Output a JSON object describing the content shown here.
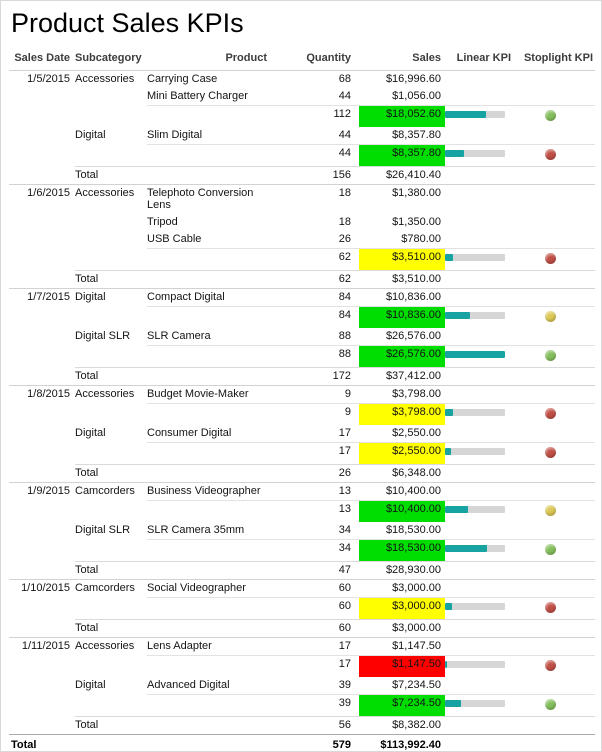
{
  "title": "Product Sales KPIs",
  "colors": {
    "green": "#00dd00",
    "yellow": "#ffff00",
    "red": "#ff0000",
    "bar_fill": "#16a3a1",
    "bar_track": "#d6d6d6",
    "dot_green": "#84bf5c",
    "dot_yellow": "#dcc855",
    "dot_red": "#c05046"
  },
  "chart_data": {
    "type": "table",
    "title": "Product Sales KPIs",
    "columns": [
      "Sales Date",
      "Subcategory",
      "Product",
      "Quantity",
      "Sales",
      "Linear KPI",
      "Stoplight KPI"
    ],
    "rows": [
      {
        "type": "detail",
        "group_start": true,
        "date": "1/5/2015",
        "subcategory": "Accessories",
        "product": "Carrying Case",
        "quantity": "68",
        "sales": "$16,996.60"
      },
      {
        "type": "detail",
        "product": "Mini Battery Charger",
        "quantity": "44",
        "sales": "$1,056.00"
      },
      {
        "type": "subtotal",
        "quantity": "112",
        "sales": "$18,052.60",
        "sales_bg": "green",
        "bar_pct": 68,
        "dot": "green"
      },
      {
        "type": "detail",
        "subcategory": "Digital",
        "product": "Slim Digital",
        "quantity": "44",
        "sales": "$8,357.80"
      },
      {
        "type": "subtotal",
        "quantity": "44",
        "sales": "$8,357.80",
        "sales_bg": "green",
        "bar_pct": 31,
        "dot": "red"
      },
      {
        "type": "total",
        "subcategory": "Total",
        "quantity": "156",
        "sales": "$26,410.40"
      },
      {
        "type": "detail",
        "group_start": true,
        "date": "1/6/2015",
        "subcategory": "Accessories",
        "product": "Telephoto Conversion Lens",
        "quantity": "18",
        "sales": "$1,380.00"
      },
      {
        "type": "detail",
        "product": "Tripod",
        "quantity": "18",
        "sales": "$1,350.00"
      },
      {
        "type": "detail",
        "product": "USB Cable",
        "quantity": "26",
        "sales": "$780.00"
      },
      {
        "type": "subtotal",
        "quantity": "62",
        "sales": "$3,510.00",
        "sales_bg": "yellow",
        "bar_pct": 13,
        "dot": "red"
      },
      {
        "type": "total",
        "subcategory": "Total",
        "quantity": "62",
        "sales": "$3,510.00"
      },
      {
        "type": "detail",
        "group_start": true,
        "date": "1/7/2015",
        "subcategory": "Digital",
        "product": "Compact Digital",
        "quantity": "84",
        "sales": "$10,836.00"
      },
      {
        "type": "subtotal",
        "quantity": "84",
        "sales": "$10,836.00",
        "sales_bg": "green",
        "bar_pct": 41,
        "dot": "yellow"
      },
      {
        "type": "detail",
        "subcategory": "Digital SLR",
        "product": "SLR Camera",
        "quantity": "88",
        "sales": "$26,576.00"
      },
      {
        "type": "subtotal",
        "quantity": "88",
        "sales": "$26,576.00",
        "sales_bg": "green",
        "bar_pct": 100,
        "dot": "green"
      },
      {
        "type": "total",
        "subcategory": "Total",
        "quantity": "172",
        "sales": "$37,412.00"
      },
      {
        "type": "detail",
        "group_start": true,
        "date": "1/8/2015",
        "subcategory": "Accessories",
        "product": "Budget Movie-Maker",
        "quantity": "9",
        "sales": "$3,798.00"
      },
      {
        "type": "subtotal",
        "quantity": "9",
        "sales": "$3,798.00",
        "sales_bg": "yellow",
        "bar_pct": 14,
        "dot": "red"
      },
      {
        "type": "detail",
        "subcategory": "Digital",
        "product": "Consumer Digital",
        "quantity": "17",
        "sales": "$2,550.00"
      },
      {
        "type": "subtotal",
        "quantity": "17",
        "sales": "$2,550.00",
        "sales_bg": "yellow",
        "bar_pct": 10,
        "dot": "red"
      },
      {
        "type": "total",
        "subcategory": "Total",
        "quantity": "26",
        "sales": "$6,348.00"
      },
      {
        "type": "detail",
        "group_start": true,
        "date": "1/9/2015",
        "subcategory": "Camcorders",
        "product": "Business Videographer",
        "quantity": "13",
        "sales": "$10,400.00"
      },
      {
        "type": "subtotal",
        "quantity": "13",
        "sales": "$10,400.00",
        "sales_bg": "green",
        "bar_pct": 39,
        "dot": "yellow"
      },
      {
        "type": "detail",
        "subcategory": "Digital SLR",
        "product": "SLR Camera 35mm",
        "quantity": "34",
        "sales": "$18,530.00"
      },
      {
        "type": "subtotal",
        "quantity": "34",
        "sales": "$18,530.00",
        "sales_bg": "green",
        "bar_pct": 70,
        "dot": "green"
      },
      {
        "type": "total",
        "subcategory": "Total",
        "quantity": "47",
        "sales": "$28,930.00"
      },
      {
        "type": "detail",
        "group_start": true,
        "date": "1/10/2015",
        "subcategory": "Camcorders",
        "product": "Social Videographer",
        "quantity": "60",
        "sales": "$3,000.00"
      },
      {
        "type": "subtotal",
        "quantity": "60",
        "sales": "$3,000.00",
        "sales_bg": "yellow",
        "bar_pct": 11,
        "dot": "red"
      },
      {
        "type": "total",
        "subcategory": "Total",
        "quantity": "60",
        "sales": "$3,000.00"
      },
      {
        "type": "detail",
        "group_start": true,
        "date": "1/11/2015",
        "subcategory": "Accessories",
        "product": "Lens Adapter",
        "quantity": "17",
        "sales": "$1,147.50"
      },
      {
        "type": "subtotal",
        "quantity": "17",
        "sales": "$1,147.50",
        "sales_bg": "red",
        "bar_pct": 4,
        "dot": "red"
      },
      {
        "type": "detail",
        "subcategory": "Digital",
        "product": "Advanced Digital",
        "quantity": "39",
        "sales": "$7,234.50"
      },
      {
        "type": "subtotal",
        "quantity": "39",
        "sales": "$7,234.50",
        "sales_bg": "green",
        "bar_pct": 27,
        "dot": "green"
      },
      {
        "type": "total",
        "subcategory": "Total",
        "quantity": "56",
        "sales": "$8,382.00"
      }
    ],
    "grand_total": {
      "label": "Total",
      "quantity": "579",
      "sales": "$113,992.40"
    }
  }
}
